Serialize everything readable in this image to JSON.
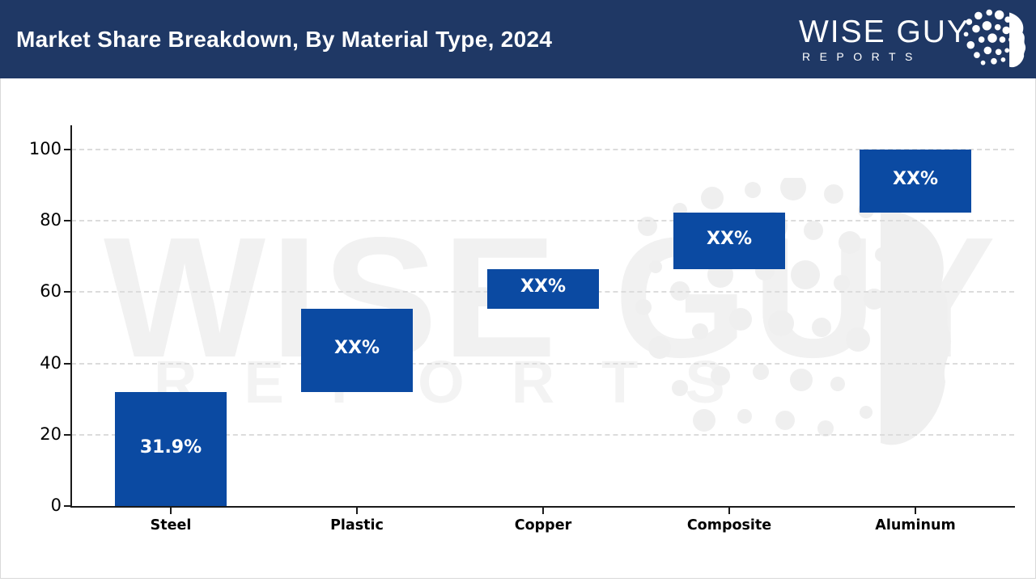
{
  "header": {
    "title": "Market Share Breakdown, By Material Type, 2024",
    "logo": {
      "line1": "WISE GUY",
      "line2": "REPORTS"
    }
  },
  "watermark": {
    "line1": "WISE GUY",
    "line2": "REPORTS"
  },
  "colors": {
    "header_bg": "#1f3865",
    "bar": "#0b4aa2",
    "bar_label": "#ffffff",
    "axis": "#1a1a1a",
    "grid": "#dcdcdc",
    "watermark": "#f1f1f1"
  },
  "chart_data": {
    "type": "bar",
    "subtype": "waterfall",
    "title": "Market Share Breakdown, By Material Type, 2024",
    "xlabel": "",
    "ylabel": "",
    "categories": [
      "Steel",
      "Plastic",
      "Copper",
      "Composite",
      "Aluminum"
    ],
    "segments": [
      {
        "label": "Steel",
        "base": 0,
        "top": 31.9,
        "value": 31.9,
        "value_label": "31.9%"
      },
      {
        "label": "Plastic",
        "base": 31.9,
        "top": 55.4,
        "value": 23.5,
        "value_label": "XX%"
      },
      {
        "label": "Copper",
        "base": 55.4,
        "top": 66.4,
        "value": 11.0,
        "value_label": "XX%"
      },
      {
        "label": "Composite",
        "base": 66.4,
        "top": 82.3,
        "value": 15.9,
        "value_label": "XX%"
      },
      {
        "label": "Aluminum",
        "base": 82.3,
        "top": 100.0,
        "value": 17.7,
        "value_label": "XX%"
      }
    ],
    "yticks": [
      0,
      20,
      40,
      60,
      80,
      100
    ],
    "ylim": [
      0,
      106
    ],
    "grid": "horizontal dashed",
    "legend": "none",
    "bar_color": "#0b4aa2",
    "bar_label_color": "#ffffff"
  }
}
